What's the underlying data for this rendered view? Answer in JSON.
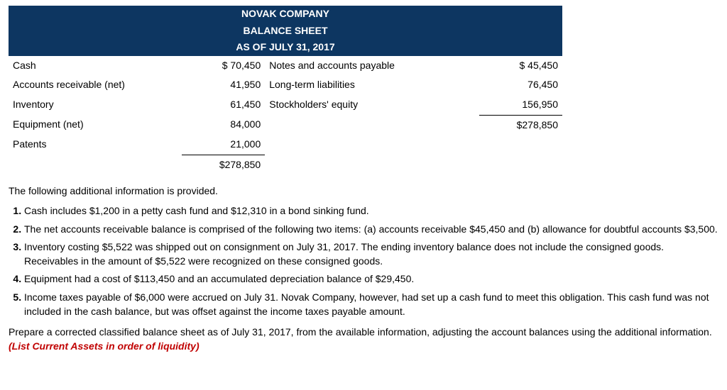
{
  "header": {
    "company": "NOVAK COMPANY",
    "title": "BALANCE SHEET",
    "asof": "AS OF JULY 31, 2017",
    "bg_color": "#0d3661",
    "text_color": "#ffffff"
  },
  "balance_sheet": {
    "left": [
      {
        "label": "Cash",
        "value": "$ 70,450"
      },
      {
        "label": "Accounts receivable (net)",
        "value": "41,950"
      },
      {
        "label": "Inventory",
        "value": "61,450"
      },
      {
        "label": "Equipment (net)",
        "value": "84,000"
      },
      {
        "label": "Patents",
        "value": "21,000"
      }
    ],
    "left_total": "$278,850",
    "right": [
      {
        "label": "Notes and accounts payable",
        "value": "$ 45,450"
      },
      {
        "label": "Long-term liabilities",
        "value": "76,450"
      },
      {
        "label": "Stockholders' equity",
        "value": "156,950"
      }
    ],
    "right_total": "$278,850"
  },
  "intro_text": "The following additional information is provided.",
  "info_items": [
    "Cash includes $1,200 in a petty cash fund and $12,310 in a bond sinking fund.",
    "The net accounts receivable balance is comprised of the following two items: (a) accounts receivable $45,450 and (b) allowance for doubtful accounts $3,500.",
    "Inventory costing $5,522 was shipped out on consignment on July 31, 2017. The ending inventory balance does not include the consigned goods. Receivables in the amount of $5,522 were recognized on these consigned goods.",
    "Equipment had a cost of $113,450 and an accumulated depreciation balance of $29,450.",
    "Income taxes payable of $6,000 were accrued on July 31. Novak Company, however, had set up a cash fund to meet this obligation. This cash fund was not included in the cash balance, but was offset against the income taxes payable amount."
  ],
  "final": {
    "part1": "Prepare a corrected classified balance sheet as of July 31, 2017, from the available information, adjusting the account balances using the additional information. ",
    "part2": "(List Current Assets in order of liquidity)"
  }
}
